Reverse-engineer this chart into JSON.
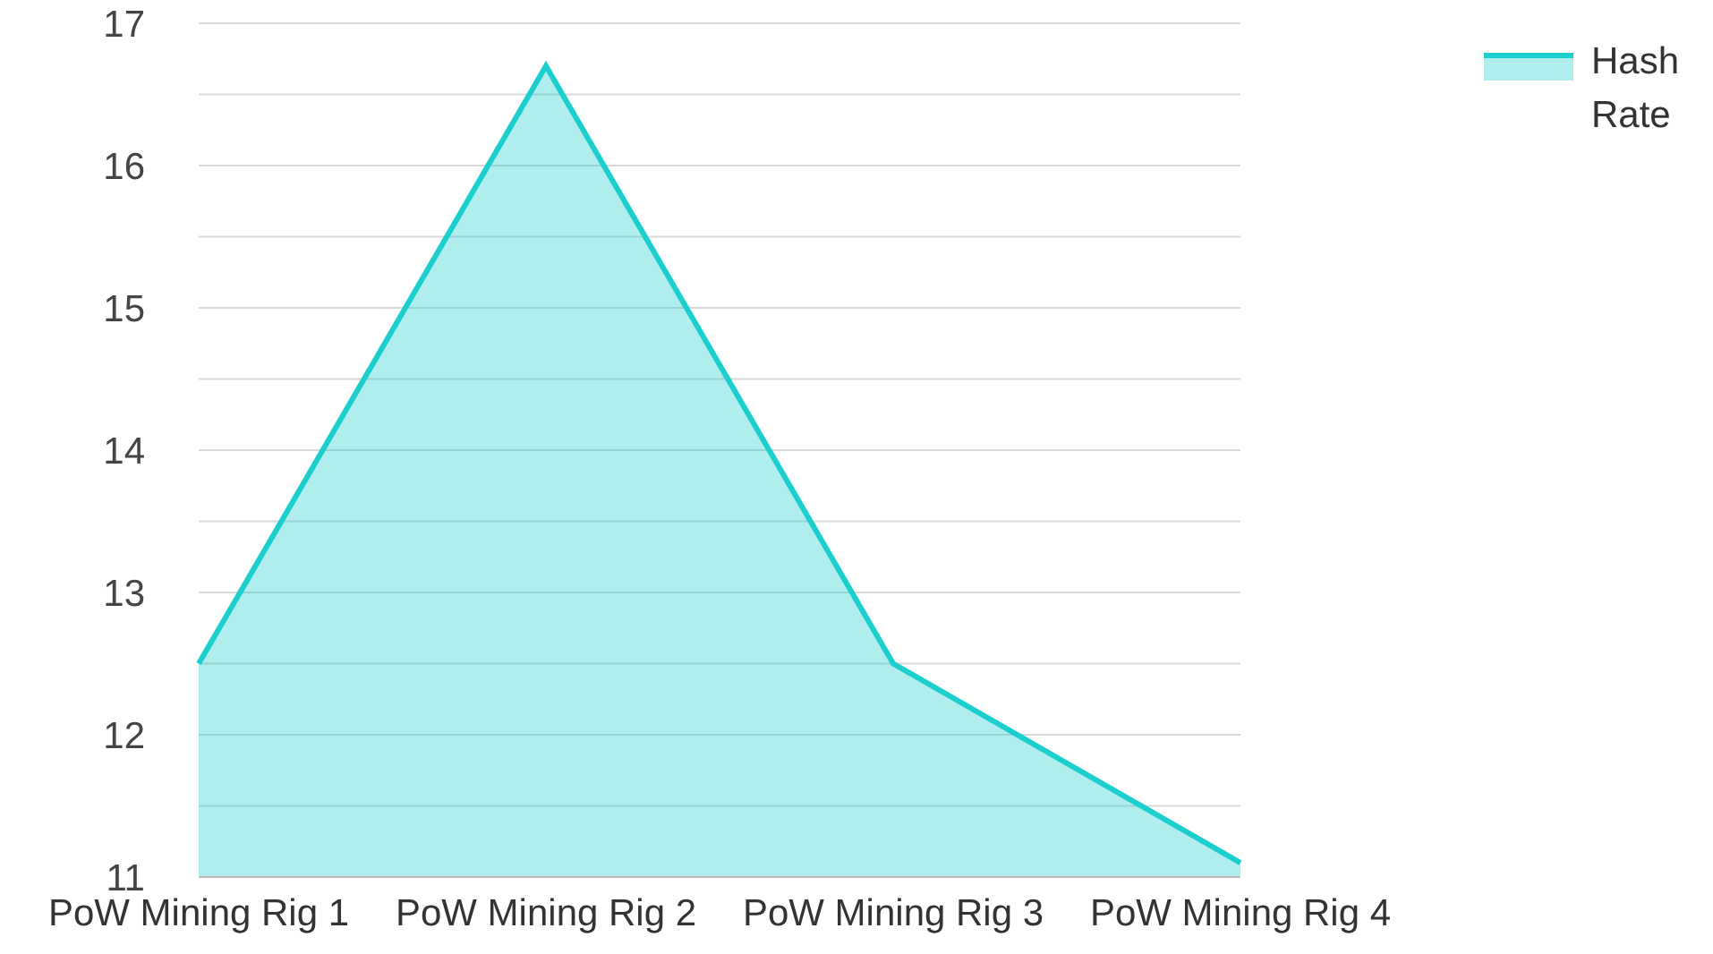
{
  "chart_data": {
    "type": "area",
    "categories": [
      "PoW Mining Rig 1",
      "PoW Mining Rig 2",
      "PoW Mining Rig 3",
      "PoW Mining Rig 4"
    ],
    "series": [
      {
        "name": "Hash Rate",
        "color": "#1ccfcf",
        "values": [
          12.5,
          16.7,
          12.5,
          11.1
        ]
      }
    ],
    "ylim": [
      11,
      17
    ],
    "yticks": [
      11,
      {
        "value": 11.5,
        "label": null
      },
      12,
      {
        "value": 12.5,
        "label": null
      },
      13,
      {
        "value": 13.5,
        "label": null
      },
      14,
      {
        "value": 14.5,
        "label": null
      },
      15,
      {
        "value": 15.5,
        "label": null
      },
      16,
      {
        "value": 16.5,
        "label": null
      },
      17
    ],
    "grid": "y",
    "legend": "top right"
  }
}
